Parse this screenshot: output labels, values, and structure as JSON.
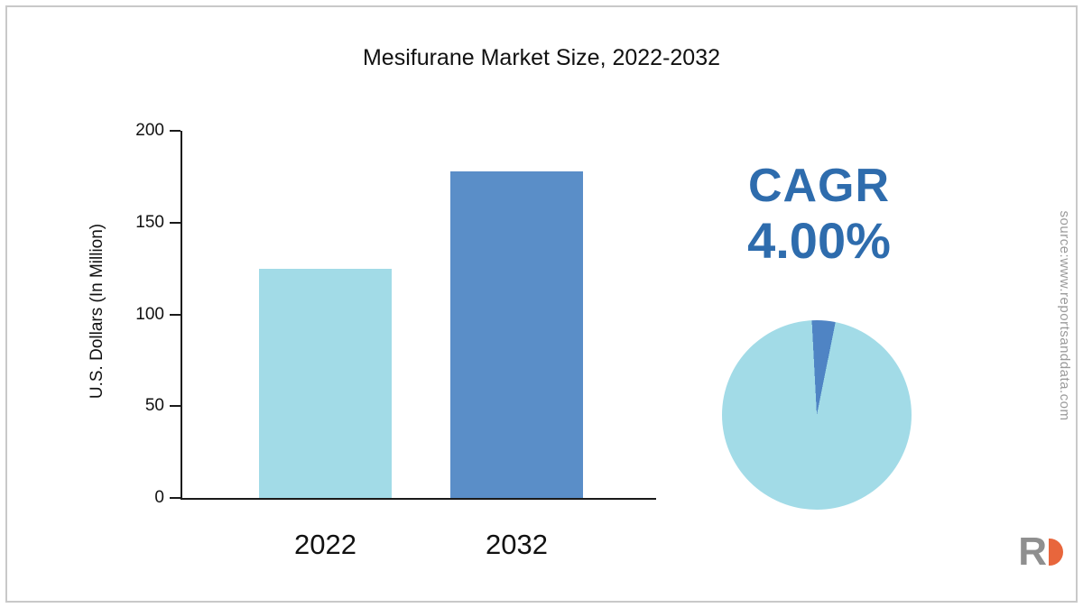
{
  "title": "Mesifurane Market Size, 2022-2032",
  "chart_data": {
    "type": "bar",
    "categories": [
      "2022",
      "2032"
    ],
    "values": [
      125,
      178
    ],
    "title": "Mesifurane Market Size, 2022-2032",
    "xlabel": "",
    "ylabel": "U.S. Dollars (In Million)",
    "ylim": [
      0,
      200
    ],
    "yticks": [
      0,
      50,
      100,
      150,
      200
    ],
    "bar_colors": [
      "#a2dbe7",
      "#5a8ec8"
    ],
    "grid": false,
    "legend": false
  },
  "cagr": {
    "label": "CAGR",
    "value": "4.00%",
    "color": "#2e6cad",
    "pie_percent": 4
  },
  "pie": {
    "base_color": "#a2dbe7",
    "slice_color": "#4f84c4"
  },
  "source": "source:www.reportsanddata.com",
  "logo": {
    "letter": "R"
  }
}
